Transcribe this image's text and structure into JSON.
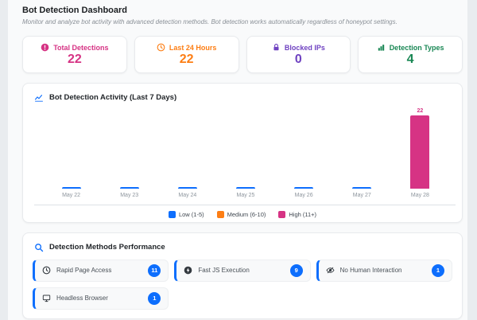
{
  "page": {
    "title": "Bot Detection Dashboard",
    "subtitle": "Monitor and analyze bot activity with advanced detection methods. Bot detection works automatically regardless of honeypot settings."
  },
  "stats": [
    {
      "label": "Total Detections",
      "value": "22",
      "color": "#d63384",
      "icon": "alert-circle-icon"
    },
    {
      "label": "Last 24 Hours",
      "value": "22",
      "color": "#fd7e14",
      "icon": "clock-icon"
    },
    {
      "label": "Blocked IPs",
      "value": "0",
      "color": "#6f42c1",
      "icon": "lock-icon"
    },
    {
      "label": "Detection Types",
      "value": "4",
      "color": "#198754",
      "icon": "bar-chart-icon"
    }
  ],
  "chart_data": {
    "type": "bar",
    "title": "Bot Detection Activity (Last 7 Days)",
    "categories": [
      "May 22",
      "May 23",
      "May 24",
      "May 25",
      "May 26",
      "May 27",
      "May 28"
    ],
    "values": [
      0,
      0,
      0,
      0,
      0,
      0,
      22
    ],
    "value_labels": [
      "",
      "",
      "",
      "",
      "",
      "",
      "22"
    ],
    "bar_colors": [
      "#0d6efd",
      "#0d6efd",
      "#0d6efd",
      "#0d6efd",
      "#0d6efd",
      "#0d6efd",
      "#d63384"
    ],
    "ylim": [
      0,
      22
    ],
    "grid": false,
    "legend_position": "bottom",
    "legend": [
      {
        "label": "Low (1-5)",
        "color": "#0d6efd"
      },
      {
        "label": "Medium (6-10)",
        "color": "#fd7e14"
      },
      {
        "label": "High (11+)",
        "color": "#d63384"
      }
    ]
  },
  "methods": {
    "title": "Detection Methods Performance",
    "accent_color": "#0d6efd",
    "items": [
      {
        "label": "Rapid Page Access",
        "count": "11",
        "icon": "clock-icon"
      },
      {
        "label": "Fast JS Execution",
        "count": "9",
        "icon": "lightning-icon"
      },
      {
        "label": "No Human Interaction",
        "count": "1",
        "icon": "eye-off-icon"
      },
      {
        "label": "Headless Browser",
        "count": "1",
        "icon": "monitor-icon"
      }
    ]
  }
}
